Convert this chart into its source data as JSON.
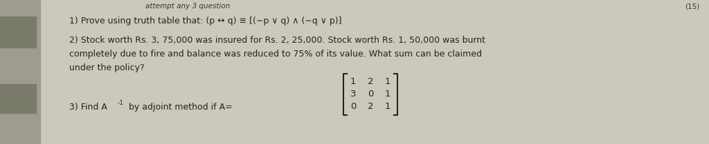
{
  "bg_color": "#ccc9bc",
  "text_color": "#222222",
  "line1": "1) Prove using truth table that: (p ↔ q) ≡ [(∼p ∨ q) ∧ (∼q ∨ p)]",
  "line2": "2) Stock worth Rs. 3, 75,000 was insured for Rs. 2, 25,000. Stock worth Rs. 1, 50,000 was burnt",
  "line3": "completely due to fire and balance was reduced to 75% of its value. What sum can be claimed",
  "line4": "under the policy?",
  "line5_a": "3) Find A",
  "line5_b": "-1",
  "line5_c": " by adjoint method if A=",
  "matrix": [
    [
      1,
      2,
      1
    ],
    [
      3,
      0,
      1
    ],
    [
      0,
      2,
      1
    ]
  ],
  "header_text": "attempt any 3 question",
  "right_text": "(15)",
  "left_strip_color": "#9e9c8e",
  "left_dark1_color": "#7a7a6a",
  "left_dark2_color": "#7a7a6a",
  "fig_width": 10.24,
  "fig_height": 2.09,
  "dpi": 100
}
